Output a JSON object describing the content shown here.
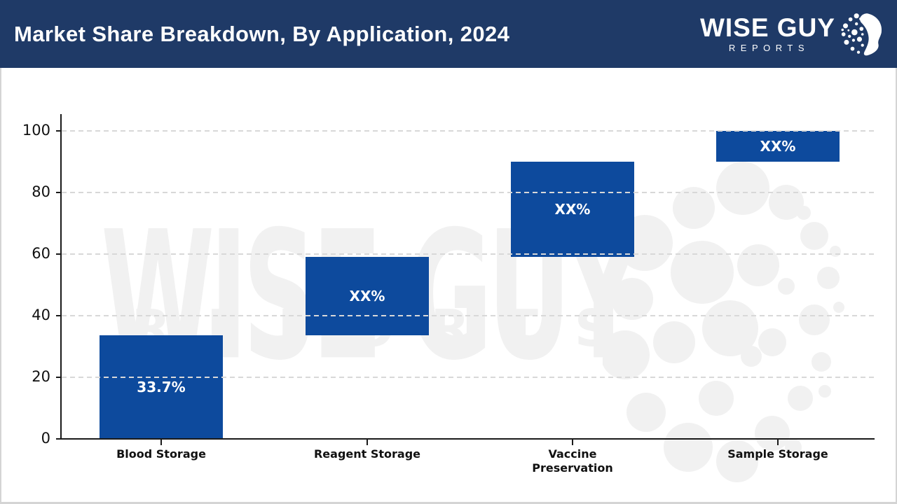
{
  "header": {
    "title": "Market Share Breakdown, By Application, 2024",
    "logo": {
      "wordmark": "WISE GUY",
      "subtext": "REPORTS"
    }
  },
  "watermark": {
    "wordmark": "WISE GUY",
    "subtext": "REPORTS"
  },
  "chart_data": {
    "type": "bar",
    "subtype": "waterfall-stacked-segments",
    "title": "Market Share Breakdown, By Application, 2024",
    "categories": [
      "Blood Storage",
      "Reagent Storage",
      "Vaccine Preservation",
      "Sample Storage"
    ],
    "segments": [
      {
        "category": "Blood Storage",
        "start": 0,
        "end": 33.7,
        "label": "33.7%"
      },
      {
        "category": "Reagent Storage",
        "start": 33.7,
        "end": 59,
        "label": "XX%"
      },
      {
        "category": "Vaccine Preservation",
        "start": 59,
        "end": 90,
        "label": "XX%"
      },
      {
        "category": "Sample Storage",
        "start": 90,
        "end": 100,
        "label": "XX%"
      }
    ],
    "yticks": [
      0,
      20,
      40,
      60,
      80,
      100
    ],
    "ylim": [
      0,
      105
    ],
    "xlabel": "",
    "ylabel": "",
    "grid": "horizontal-dashed",
    "legend": "none",
    "bar_label_color": "#ffffff"
  },
  "colors": {
    "header_bg": "#1f3a67",
    "bar": "#0d4a9d",
    "grid": "#d8d8d8",
    "axis": "#1a1a1a",
    "watermark": "#f1f1f1",
    "border": "#d4d4d4"
  }
}
